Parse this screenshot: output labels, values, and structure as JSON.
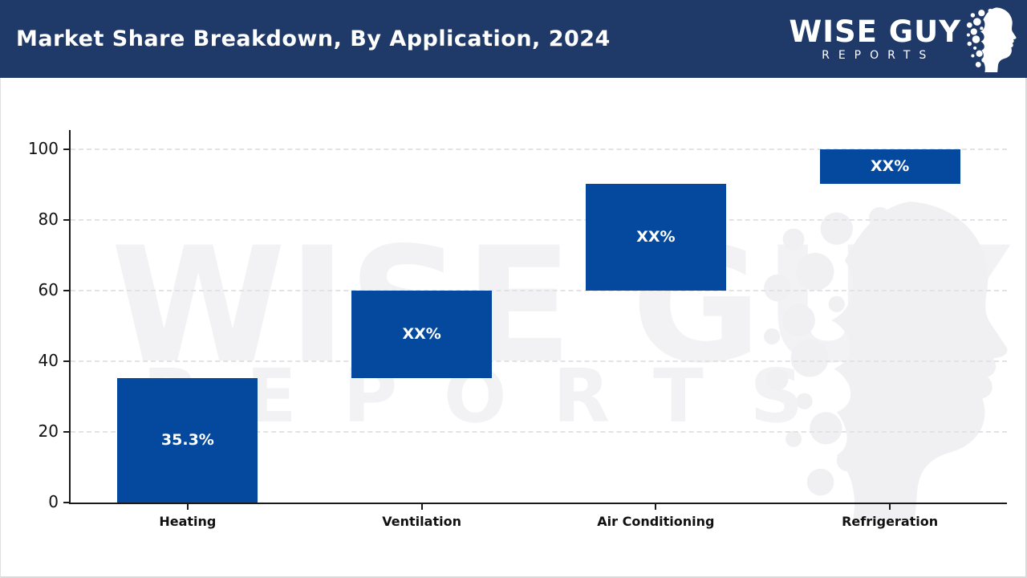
{
  "header": {
    "title": "Market Share Breakdown, By Application, 2024",
    "logo": {
      "line1": "WISE GUY",
      "line2": "REPORTS"
    }
  },
  "watermark": {
    "line1": "WISE GUY",
    "line2": "REPORTS"
  },
  "colors": {
    "header_bg": "#1f3a68",
    "bar": "#05499e",
    "grid": "#e3e3e5",
    "axis": "#1a1a1a",
    "watermark": "#f2f2f4",
    "bar_label": "#ffffff"
  },
  "chart_data": {
    "type": "bar",
    "subtype": "waterfall",
    "title": "Market Share Breakdown, By Application, 2024",
    "categories": [
      "Heating",
      "Ventilation",
      "Air Conditioning",
      "Refrigeration"
    ],
    "segments": [
      {
        "category": "Heating",
        "start": 0,
        "end": 35.3,
        "label": "35.3%"
      },
      {
        "category": "Ventilation",
        "start": 35.3,
        "end": 60,
        "label": "XX%"
      },
      {
        "category": "Air Conditioning",
        "start": 60,
        "end": 90.3,
        "label": "XX%"
      },
      {
        "category": "Refrigeration",
        "start": 90.3,
        "end": 100,
        "label": "XX%"
      }
    ],
    "yticks": [
      0,
      20,
      40,
      60,
      80,
      100
    ],
    "ylim": [
      0,
      105.5
    ],
    "xlabel": "",
    "ylabel": "",
    "grid": "horizontal-dashed",
    "legend": "none"
  }
}
